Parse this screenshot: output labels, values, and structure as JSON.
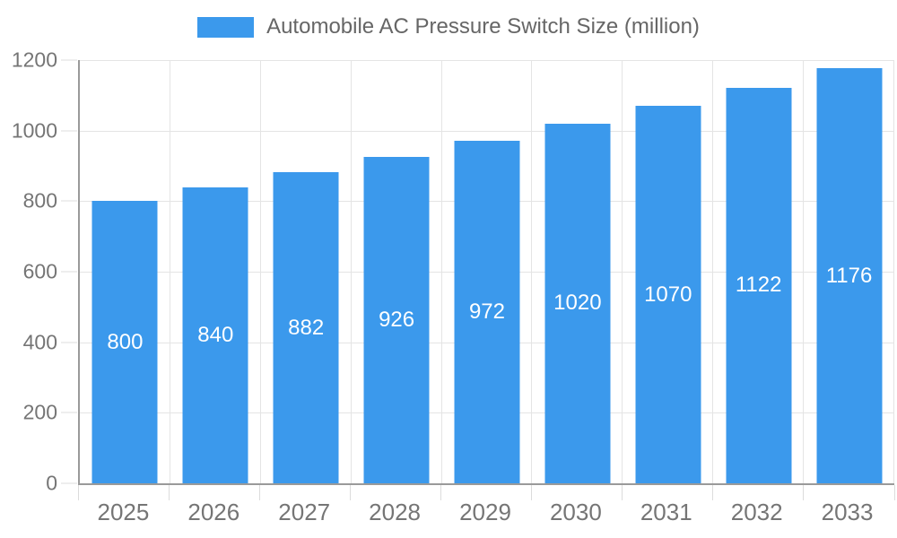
{
  "legend": {
    "label": "Automobile AC Pressure Switch Size (million)"
  },
  "colors": {
    "bar": "#3B99EC",
    "grid": "#E4E4E4",
    "tick": "#DCDCDC",
    "axis": "#9A9A9A",
    "tick_text": "#757575",
    "legend_text": "#666666",
    "value_text": "#FFFFFF"
  },
  "chart_data": {
    "type": "bar",
    "title": "Automobile AC Pressure Switch Size (million)",
    "series_name": "Automobile AC Pressure Switch Size (million)",
    "categories": [
      "2025",
      "2026",
      "2027",
      "2028",
      "2029",
      "2030",
      "2031",
      "2032",
      "2033"
    ],
    "values": [
      800,
      840,
      882,
      926,
      972,
      1020,
      1070,
      1122,
      1176
    ],
    "xlabel": "",
    "ylabel": "",
    "ylim": [
      0,
      1200
    ],
    "ytick_step": 200,
    "ytick_labels": [
      "0",
      "200",
      "400",
      "600",
      "800",
      "1000",
      "1200"
    ],
    "grid": true,
    "legend_position": "top-center",
    "value_label_position": "inside-center"
  }
}
